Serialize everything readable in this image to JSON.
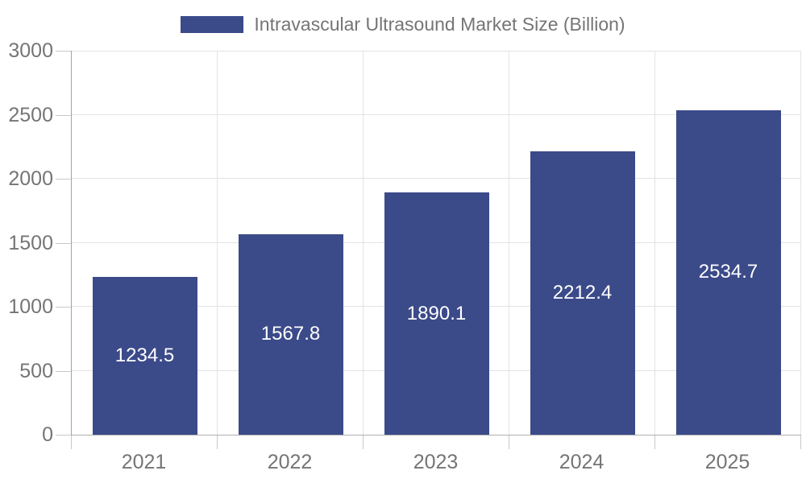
{
  "chart_data": {
    "type": "bar",
    "title": "Intravascular Ultrasound Market Size (Billion)",
    "legend": [
      "Intravascular Ultrasound Market Size (Billion)"
    ],
    "legend_position": "top-center",
    "categories": [
      "2021",
      "2022",
      "2023",
      "2024",
      "2025"
    ],
    "series": [
      {
        "name": "Intravascular Ultrasound Market Size (Billion)",
        "values": [
          1234.5,
          1567.8,
          1890.1,
          2212.4,
          2534.7
        ]
      }
    ],
    "value_labels": [
      "1234.5",
      "1567.8",
      "1890.1",
      "2212.4",
      "2534.7"
    ],
    "xlabel": "",
    "ylabel": "",
    "ylim": [
      0,
      3000
    ],
    "ytick_interval": 500,
    "ytick_labels": [
      "0",
      "500",
      "1000",
      "1500",
      "2000",
      "2500",
      "3000"
    ],
    "grid": true,
    "colors": {
      "bar": "#3b4a89",
      "bar_value_text": "#ffffff",
      "axis_text": "#757575",
      "grid_line": "#e3e3e3",
      "axis_line": "#a3a3a3",
      "tick_line": "#c9c9c9",
      "background": "#ffffff"
    }
  }
}
